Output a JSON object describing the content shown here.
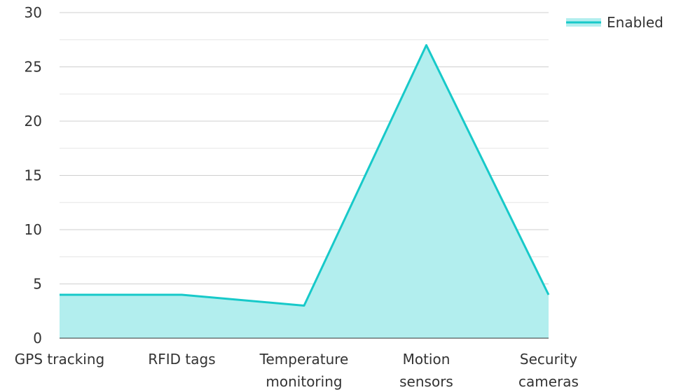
{
  "chart_data": {
    "type": "area",
    "categories": [
      [
        "GPS tracking"
      ],
      [
        "RFID tags"
      ],
      [
        "Temperature",
        "monitoring"
      ],
      [
        "Motion",
        "sensors"
      ],
      [
        "Security",
        "cameras"
      ]
    ],
    "series": [
      {
        "name": "Enabled",
        "values": [
          4,
          4,
          3,
          27,
          4
        ]
      }
    ],
    "ylim": [
      0,
      30
    ],
    "y_ticks": [
      0,
      5,
      10,
      15,
      20,
      25,
      30
    ],
    "y_minor_step": 2.5,
    "grid": true,
    "legend_position": "top-right",
    "colors": {
      "line": "#17c9c9",
      "fill": "#b2eeee",
      "grid": "#dddddd",
      "axis": "#333333"
    }
  }
}
